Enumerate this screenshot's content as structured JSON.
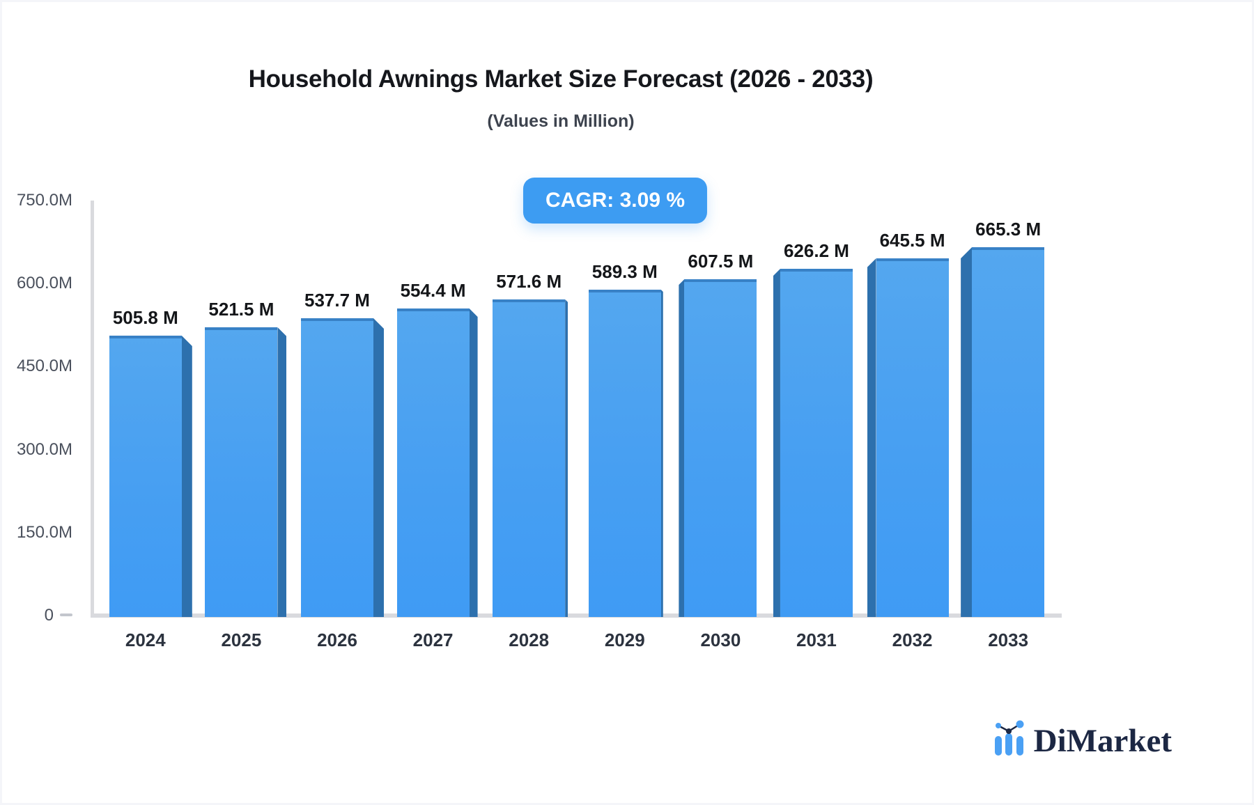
{
  "header": {
    "title": "Household Awnings Market Size Forecast (2026 - 2033)",
    "subtitle": "(Values in Million)",
    "cagr_badge": "CAGR: 3.09 %"
  },
  "chart_data": {
    "type": "bar",
    "title": "Household Awnings Market Size Forecast (2026 - 2033)",
    "subtitle": "(Values in Million)",
    "cagr_percent": 3.09,
    "categories": [
      "2024",
      "2025",
      "2026",
      "2027",
      "2028",
      "2029",
      "2030",
      "2031",
      "2032",
      "2033"
    ],
    "values": [
      505.8,
      521.5,
      537.7,
      554.4,
      571.6,
      589.3,
      607.5,
      626.2,
      645.5,
      665.3
    ],
    "value_labels": [
      "505.8 M",
      "521.5 M",
      "537.7 M",
      "554.4 M",
      "571.6 M",
      "589.3 M",
      "607.5 M",
      "626.2 M",
      "645.5 M",
      "665.3 M"
    ],
    "unit": "Million",
    "xlabel": "",
    "ylabel": "",
    "y_ticks": [
      "750.0M",
      "600.0M",
      "450.0M",
      "300.0M",
      "150.0M",
      "0"
    ],
    "ylim": [
      0,
      750
    ],
    "grid": false,
    "legend": false,
    "bar_color": "#459ff2",
    "bar_side_color": "#2d70ad",
    "style": "3d-perspective"
  },
  "branding": {
    "logo_text": "DiMarket",
    "logo_icon": "mini-bar-chart-trend-icon",
    "logo_blue": "#4aa0f4",
    "logo_navy": "#1c2743"
  },
  "colors": {
    "accent_blue": "#3d9cf2",
    "axis_gray": "#d9dade",
    "title_color": "#15171c"
  }
}
